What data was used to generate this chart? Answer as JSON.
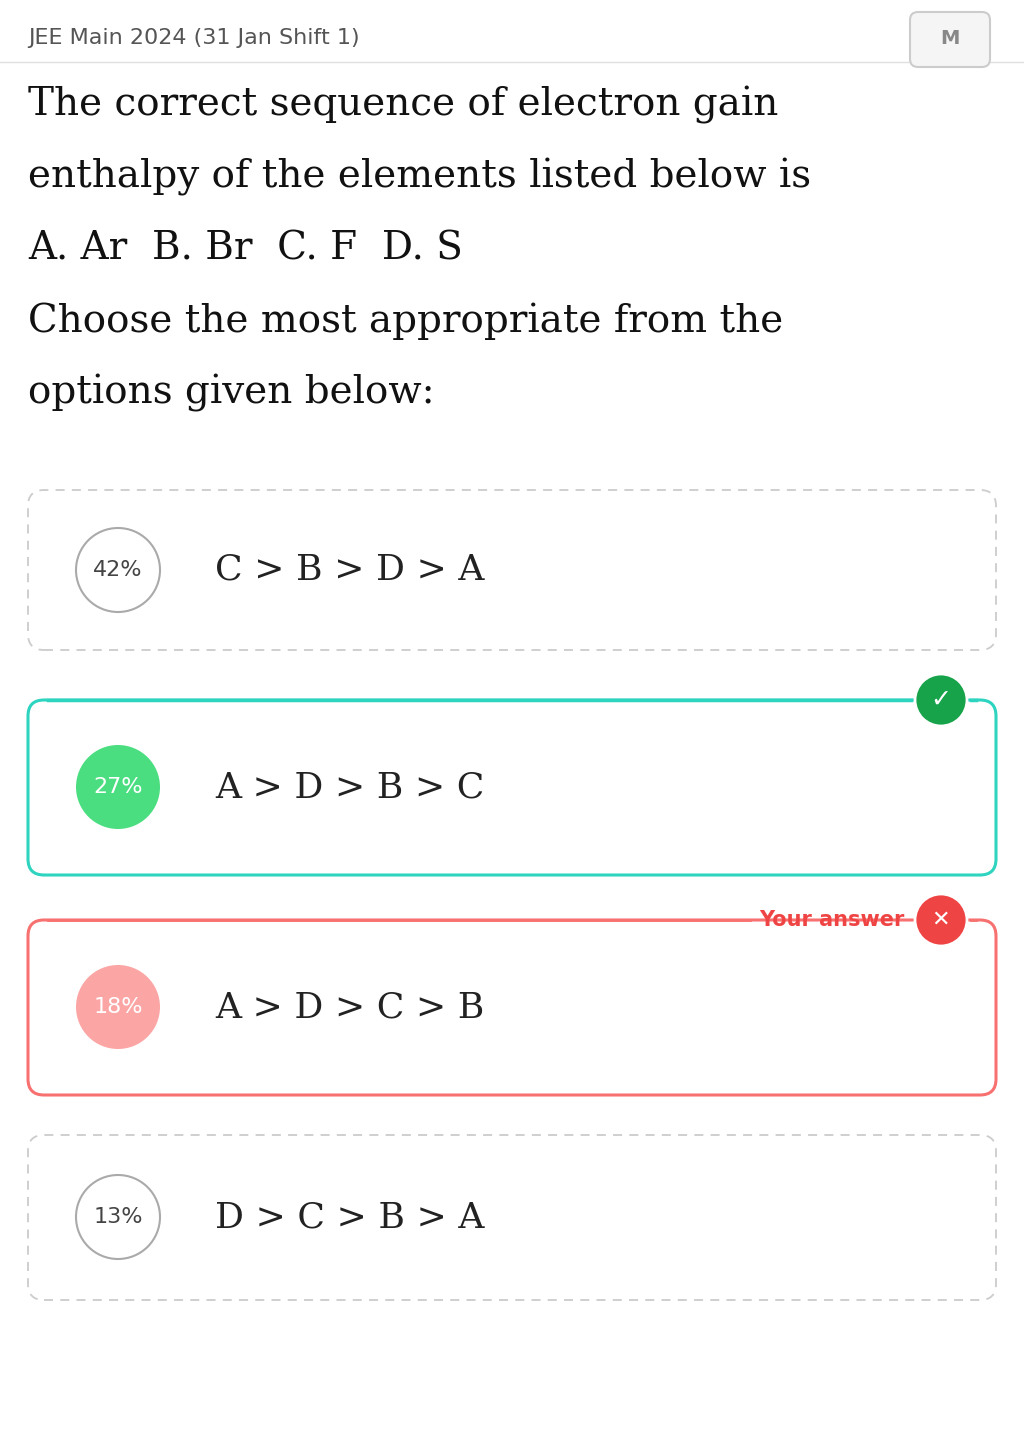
{
  "bg_color": "#ffffff",
  "header_text": "JEE Main 2024 (31 Jan Shift 1)",
  "header_color": "#555555",
  "question_lines": [
    "The correct sequence of electron gain",
    "enthalpy of the elements listed below is",
    "A. Ar  B. Br  C. F  D. S",
    "Choose the most appropriate from the",
    "options given below:"
  ],
  "options": [
    {
      "percent": "42%",
      "text": "C > B > D > A",
      "border_color": "#cccccc",
      "border_style": "dashed",
      "badge_bg": "#ffffff",
      "badge_border": "#aaaaaa",
      "badge_text_color": "#444444",
      "correct": false,
      "your_answer": false
    },
    {
      "percent": "27%",
      "text": "A > D > B > C",
      "border_color": "#2dd4bf",
      "border_style": "solid",
      "badge_bg": "#4ade80",
      "badge_border": "#4ade80",
      "badge_text_color": "#ffffff",
      "correct": true,
      "your_answer": false,
      "line_color": "#2dd4bf"
    },
    {
      "percent": "18%",
      "text": "A > D > C > B",
      "border_color": "#f87171",
      "border_style": "solid",
      "badge_bg": "#fca5a5",
      "badge_border": "#fca5a5",
      "badge_text_color": "#ffffff",
      "correct": false,
      "your_answer": true,
      "line_color": "#f87171"
    },
    {
      "percent": "13%",
      "text": "D > C > B > A",
      "border_color": "#cccccc",
      "border_style": "dashed",
      "badge_bg": "#ffffff",
      "badge_border": "#aaaaaa",
      "badge_text_color": "#444444",
      "correct": false,
      "your_answer": false
    }
  ]
}
